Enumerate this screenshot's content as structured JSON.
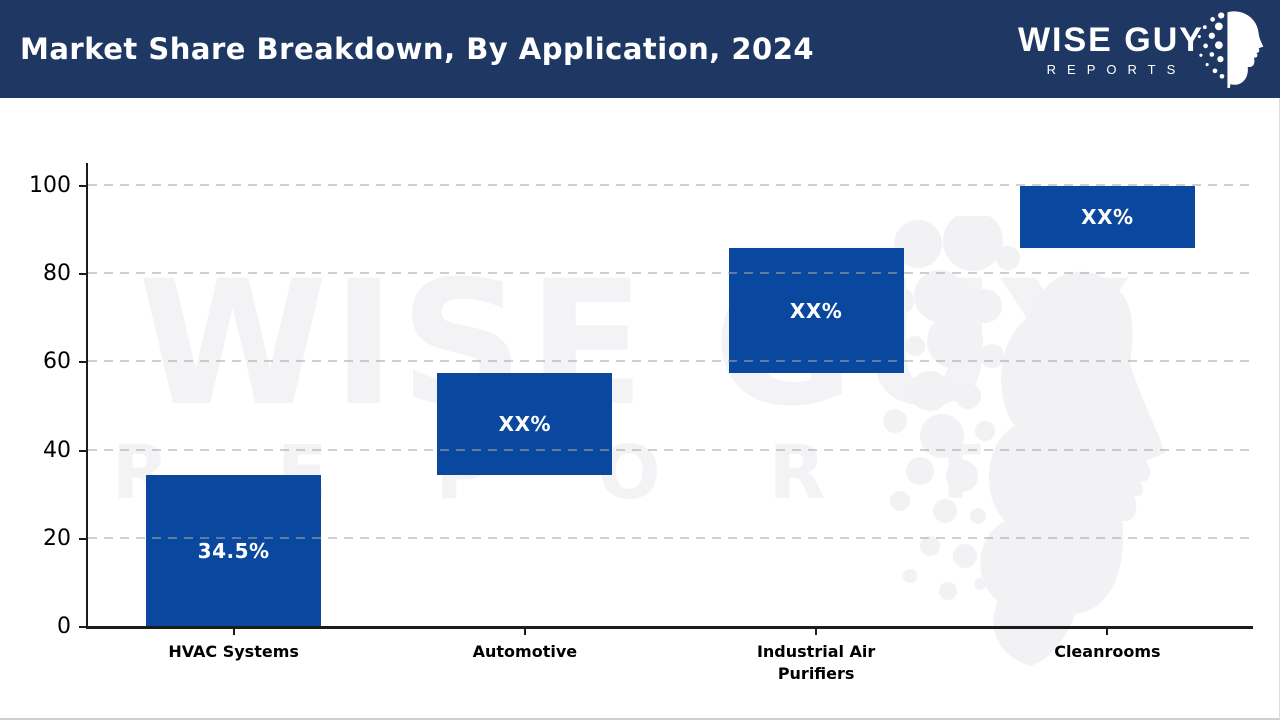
{
  "header": {
    "title": "Market Share Breakdown, By Application, 2024",
    "logo": {
      "name": "WISE GUY",
      "subtitle": "REPORTS"
    }
  },
  "watermark": {
    "line1": "WISE GUY",
    "line2": "REPORTS"
  },
  "chart_data": {
    "type": "bar",
    "subtype": "waterfall",
    "title": "Market Share Breakdown, By Application, 2024",
    "categories": [
      "HVAC Systems",
      "Automotive",
      "Industrial Air Purifiers",
      "Cleanrooms"
    ],
    "values": [
      34.5,
      23,
      28.5,
      14
    ],
    "segment_starts": [
      0,
      34.5,
      57.5,
      86
    ],
    "segment_ends": [
      34.5,
      57.5,
      86,
      100
    ],
    "bar_labels": [
      "34.5%",
      "XX%",
      "XX%",
      "XX%"
    ],
    "xlabel": "",
    "ylabel": "",
    "ylim": [
      0,
      105
    ],
    "yticks": [
      0,
      20,
      40,
      60,
      80,
      100
    ],
    "grid": "horizontal-dashed",
    "legend": "none",
    "bar_color": "#09489E",
    "bar_label_color": "#ffffff",
    "header_bg_color": "#1F3863"
  }
}
